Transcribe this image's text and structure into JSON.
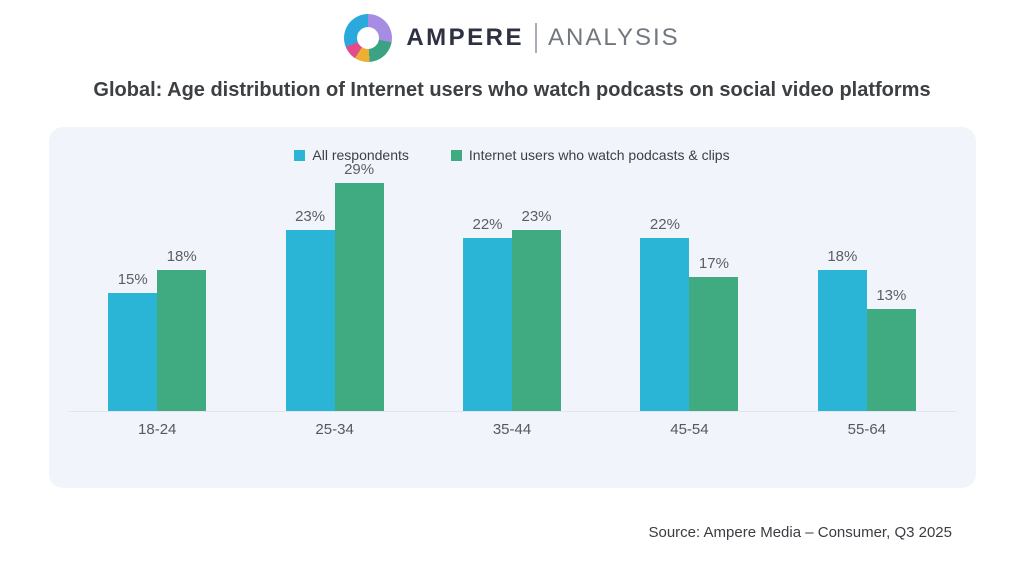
{
  "logo": {
    "brand": "AMPERE",
    "suffix": "ANALYSIS",
    "donut_colors": {
      "blue": "#2aaadc",
      "purple": "#a78ce4",
      "green": "#3ba283",
      "yellow": "#ecaf33",
      "pink": "#e34b8b"
    }
  },
  "title": "Global: Age distribution of Internet users who watch podcasts on social video platforms",
  "source": "Source: Ampere Media – Consumer, Q3 2025",
  "panel": {
    "background": "#f1f5fb"
  },
  "chart_data": {
    "type": "bar",
    "categories": [
      "18-24",
      "25-34",
      "35-44",
      "45-54",
      "55-64"
    ],
    "series": [
      {
        "name": "All respondents",
        "color": "#2ab5d7",
        "values": [
          15,
          23,
          22,
          22,
          18
        ]
      },
      {
        "name": "Internet users who watch podcasts & clips",
        "color": "#40aa80",
        "values": [
          18,
          29,
          23,
          17,
          13
        ]
      }
    ],
    "value_suffix": "%",
    "ylim": [
      0,
      30
    ],
    "grid": false,
    "legend_position": "top",
    "value_labels": true
  }
}
